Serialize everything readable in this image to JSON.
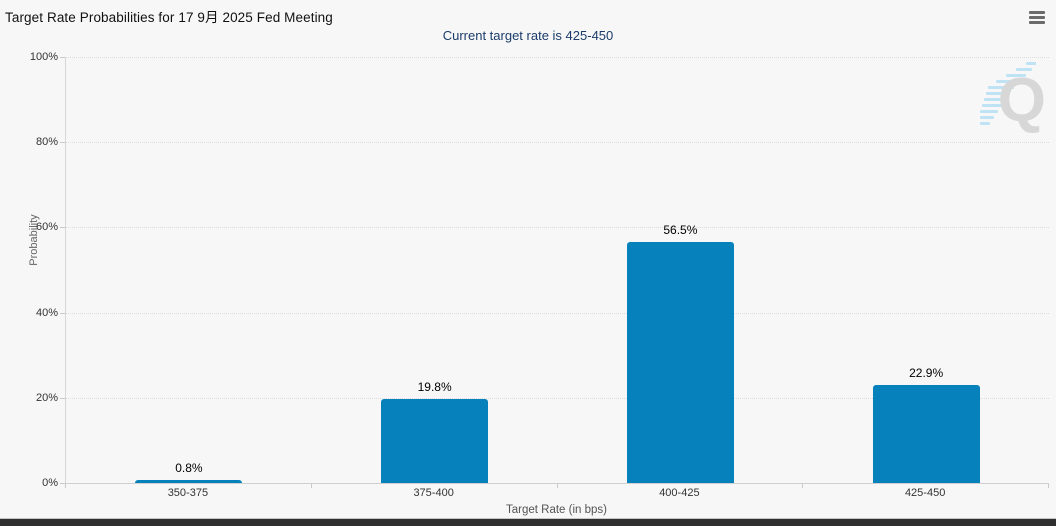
{
  "header": {
    "title": "Target Rate Probabilities for 17 9月 2025 Fed Meeting",
    "menu_icon": "hamburger-icon"
  },
  "watermark": {
    "letter": "Q"
  },
  "colors": {
    "bar": "#0681bc",
    "subtitle": "#1b3c6a",
    "page_background": "#f7f7f7",
    "footer_strip": "#2f2f2f",
    "gridline": "#dcdcdc"
  },
  "chart_data": {
    "type": "bar",
    "title": "Target Rate Probabilities for 17 9月 2025 Fed Meeting",
    "subtitle": "Current target rate is 425-450",
    "categories": [
      "350-375",
      "375-400",
      "400-425",
      "425-450"
    ],
    "values": [
      0.8,
      19.8,
      56.5,
      22.9
    ],
    "value_labels": [
      "0.8%",
      "19.8%",
      "56.5%",
      "22.9%"
    ],
    "xlabel": "Target Rate (in bps)",
    "ylabel": "Probability",
    "ylim": [
      0,
      100
    ],
    "yticks": [
      0,
      20,
      40,
      60,
      80,
      100
    ],
    "ytick_labels": [
      "0%",
      "20%",
      "40%",
      "60%",
      "80%",
      "100%"
    ],
    "grid": "horizontal-dotted",
    "legend": "none",
    "bar_color": "#0681bc"
  }
}
